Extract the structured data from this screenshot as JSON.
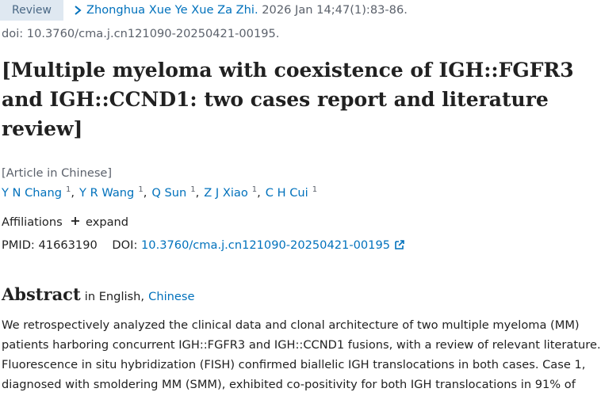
{
  "header": {
    "badge": "Review",
    "journal": "Zhonghua Xue Ye Xue Za Zhi.",
    "citation": "2026 Jan 14;47(1):83-86.",
    "doi_line": "doi: 10.3760/cma.j.cn121090-20250421-00195."
  },
  "title_lines": [
    "[Multiple myeloma with coexistence of IGH::FGFR3",
    "and IGH::CCND1: two cases report and literature",
    "review]"
  ],
  "language_note": "[Article in Chinese]",
  "authors": [
    {
      "name": "Y N Chang",
      "affiliation": "1"
    },
    {
      "name": "Y R Wang",
      "affiliation": "1"
    },
    {
      "name": "Q Sun",
      "affiliation": "1"
    },
    {
      "name": "Z J Xiao",
      "affiliation": "1"
    },
    {
      "name": "C H Cui",
      "affiliation": "1"
    }
  ],
  "author_separator": ",",
  "affiliations": {
    "label": "Affiliations",
    "toggle": "expand"
  },
  "ids": {
    "pmid_label": "PMID:",
    "pmid": "41663190",
    "doi_label": "DOI:",
    "doi": "10.3760/cma.j.cn121090-20250421-00195"
  },
  "abstract": {
    "heading": "Abstract",
    "language_prefix": "in English,",
    "alt_language": "Chinese",
    "lines": [
      "We retrospectively analyzed the clinical data and clonal architecture of two multiple myeloma (MM)",
      "patients harboring concurrent IGH::FGFR3 and IGH::CCND1 fusions, with a review of relevant literature.",
      "Fluorescence in situ hybridization (FISH) confirmed biallelic IGH translocations in both cases. Case 1,",
      "diagnosed with smoldering MM (SMM), exhibited co-positivity for both IGH translocations in 91% of"
    ]
  }
}
